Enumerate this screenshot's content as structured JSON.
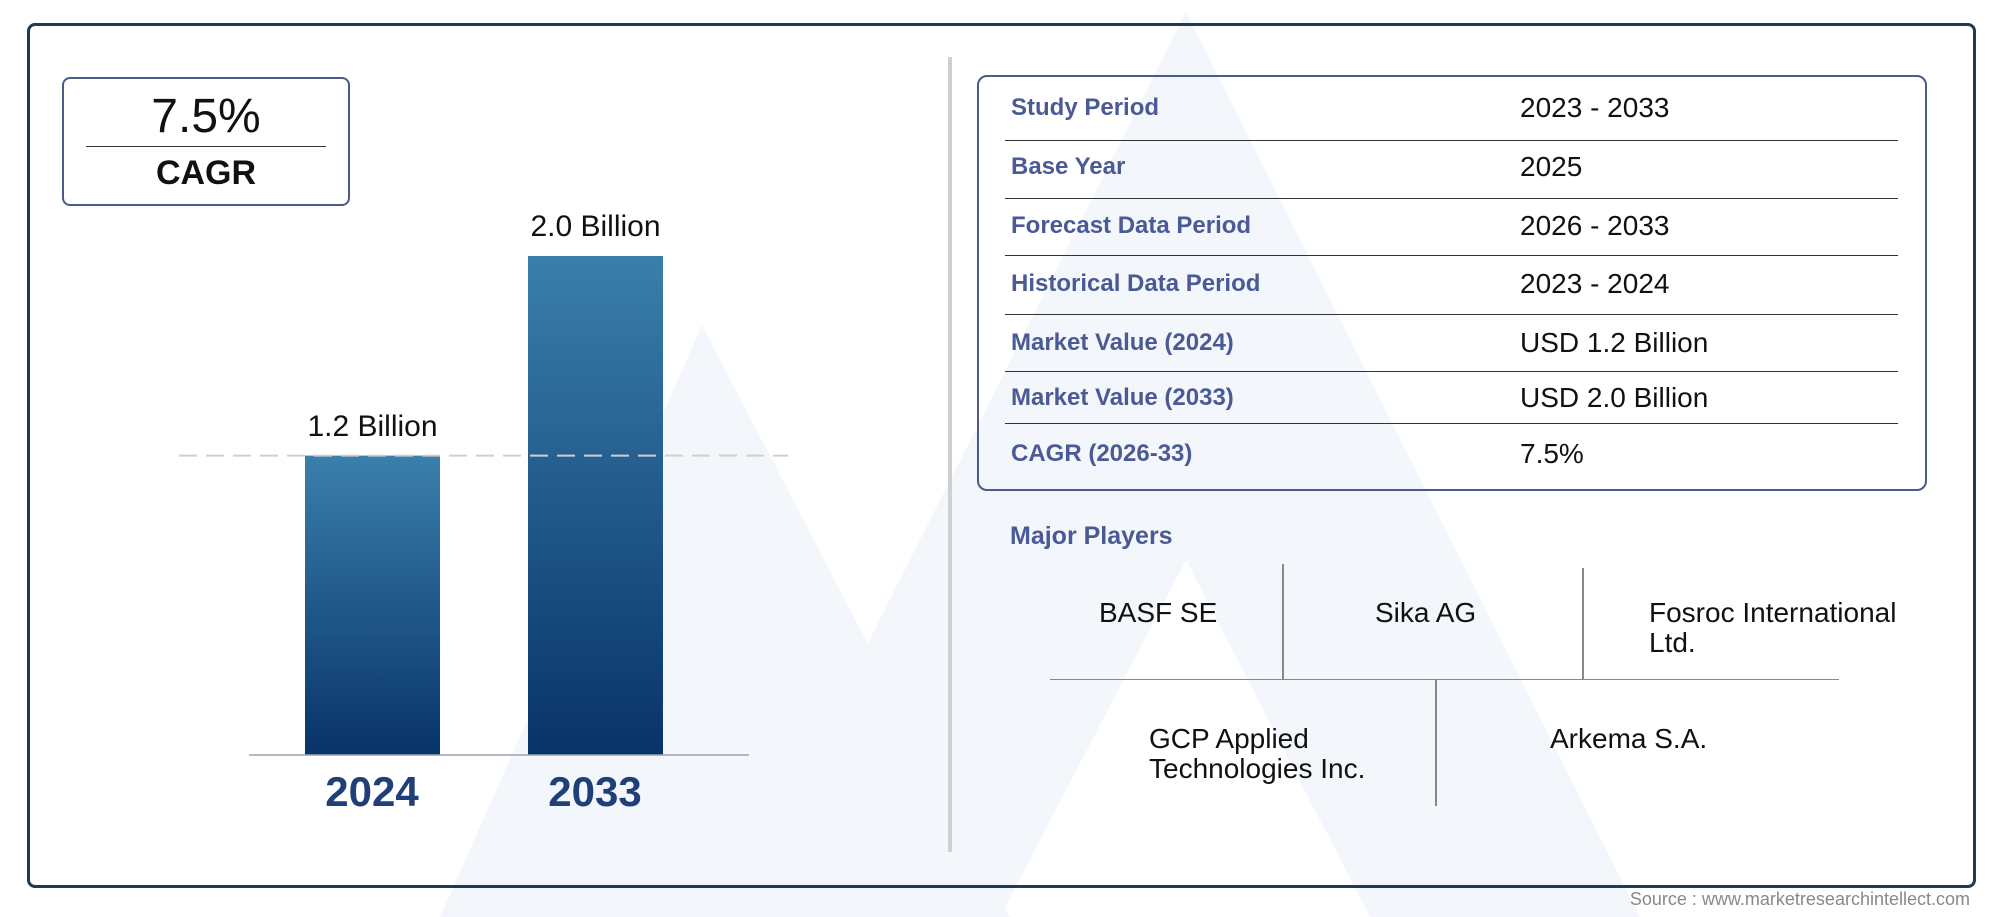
{
  "cagr_box": {
    "value": "7.5%",
    "label": "CAGR"
  },
  "chart_data": {
    "type": "bar",
    "categories": [
      "2024",
      "2033"
    ],
    "values": [
      1.2,
      2.0
    ],
    "data_labels": [
      "1.2 Billion",
      "2.0 Billion"
    ],
    "ylim": [
      0,
      2.0
    ],
    "grid": false,
    "reference_line": "dashed at 2024 value",
    "colors": {
      "bar_top": "#3a7fab",
      "bar_bottom": "#08336a",
      "year_label": "#1f3f7a"
    }
  },
  "summary_table": {
    "rows": [
      {
        "label": "Study Period",
        "value": "2023 - 2033"
      },
      {
        "label": "Base Year",
        "value": "2025"
      },
      {
        "label": "Forecast Data Period",
        "value": "2026 - 2033"
      },
      {
        "label": "Historical Data Period",
        "value": "2023 - 2024"
      },
      {
        "label": "Market Value (2024)",
        "value": "USD 1.2 Billion"
      },
      {
        "label": "Market Value (2033)",
        "value": "USD 2.0 Billion"
      },
      {
        "label": "CAGR (2026-33)",
        "value": "7.5%"
      }
    ]
  },
  "major_players": {
    "title": "Major Players",
    "players": [
      "BASF SE",
      "Sika AG",
      "Fosroc International Ltd.",
      "GCP Applied Technologies Inc.",
      "Arkema S.A."
    ]
  },
  "source": "Source : www.marketresearchintellect.com"
}
